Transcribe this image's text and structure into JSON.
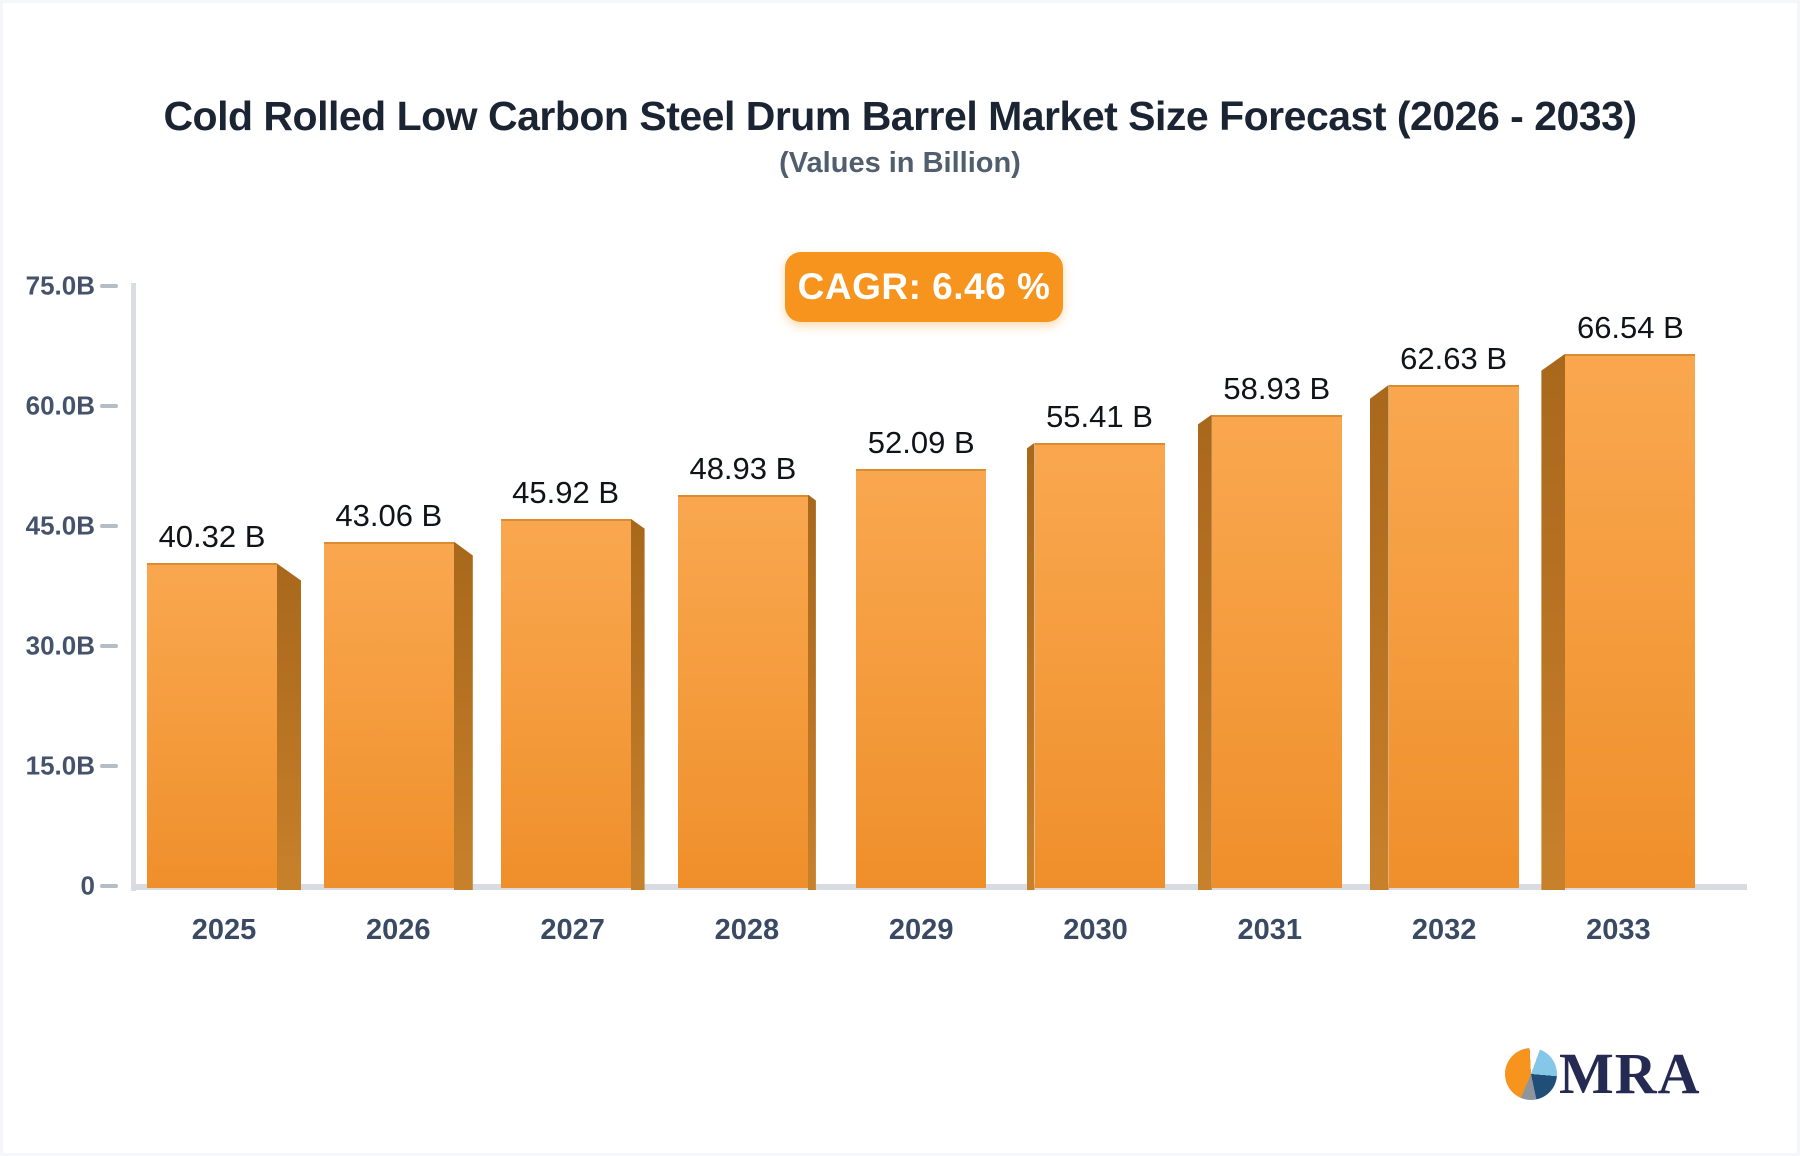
{
  "chart_data": {
    "type": "bar",
    "title": "Cold Rolled Low Carbon Steel Drum Barrel Market Size Forecast (2026 - 2033)",
    "subtitle": "(Values in Billion)",
    "cagr_label": "CAGR: 6.46 %",
    "categories": [
      "2025",
      "2026",
      "2027",
      "2028",
      "2029",
      "2030",
      "2031",
      "2032",
      "2033"
    ],
    "values": [
      40.32,
      43.06,
      45.92,
      48.93,
      52.09,
      55.41,
      58.93,
      62.63,
      66.54
    ],
    "value_labels": [
      "40.32 B",
      "43.06 B",
      "45.92 B",
      "48.93 B",
      "52.09 B",
      "55.41 B",
      "58.93 B",
      "62.63 B",
      "66.54 B"
    ],
    "ylim": [
      0,
      75
    ],
    "yticks": [
      {
        "value": 75,
        "label": "75.0B"
      },
      {
        "value": 60,
        "label": "60.0B"
      },
      {
        "value": 45,
        "label": "45.0B"
      },
      {
        "value": 30,
        "label": "30.0B"
      },
      {
        "value": 15,
        "label": "15.0B"
      },
      {
        "value": 0,
        "label": "0"
      }
    ],
    "grid": false,
    "legend_position": "none",
    "colors": {
      "bar_face_top": "#F9A74F",
      "bar_face_bottom": "#EF8F2B",
      "bar_side": "#B06E1E",
      "badge_bg": "#F7941E",
      "axis": "#D8DBE1",
      "value_label": "#101418",
      "category_label": "#3A4A63"
    }
  },
  "logo": {
    "text": "MRA",
    "pie_colors": {
      "orange": "#F7941E",
      "light_blue": "#85C7E8",
      "navy": "#1F4E79",
      "gray": "#8F959D"
    }
  }
}
